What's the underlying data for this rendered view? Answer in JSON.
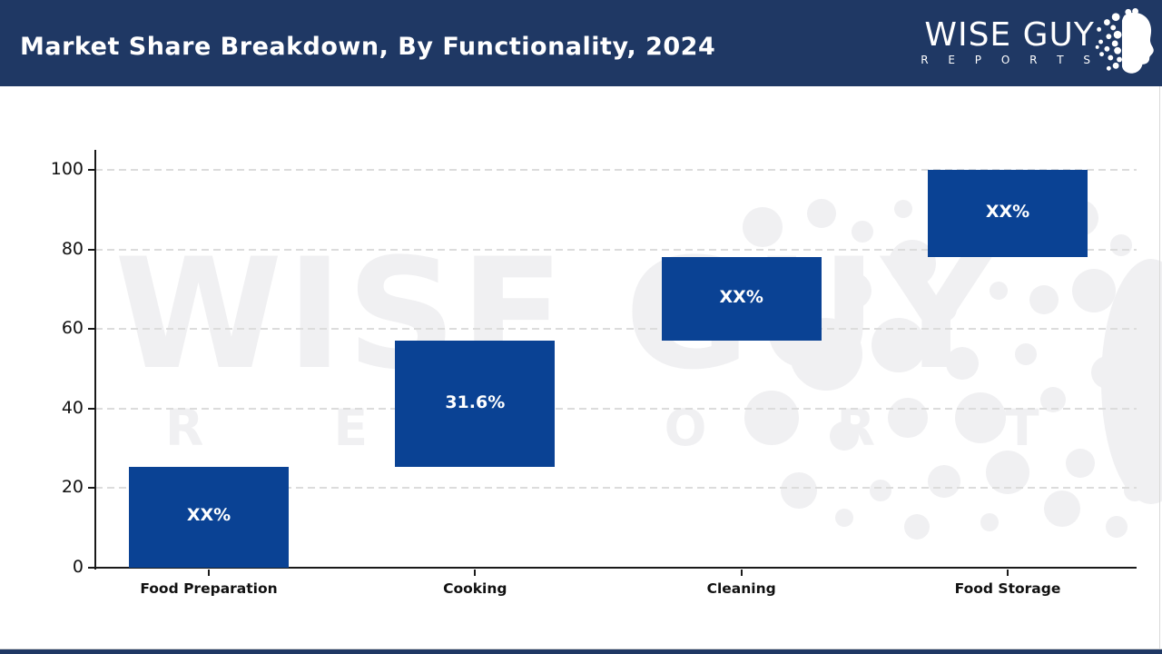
{
  "header": {
    "title": "Market Share Breakdown, By Functionality, 2024",
    "logo_line1": "WISE GUY",
    "logo_line2": "R E P O R T S"
  },
  "watermark": {
    "line1": "WISE GUY",
    "line2": "R E P O R T S"
  },
  "colors": {
    "header_bg": "#1f3864",
    "bar": "#0a4294",
    "grid": "#dcdcdc",
    "watermark": "#f0f0f2"
  },
  "chart_data": {
    "type": "bar",
    "subtype": "floating-waterfall",
    "title": "Market Share Breakdown, By Functionality, 2024",
    "categories": [
      "Food Preparation",
      "Cooking",
      "Cleaning",
      "Food Storage"
    ],
    "series": [
      {
        "name": "Market Share (%)",
        "ranges": [
          [
            0,
            25.4
          ],
          [
            25.4,
            57.0
          ],
          [
            57.0,
            78.0
          ],
          [
            78.0,
            100.0
          ]
        ],
        "labels": [
          "XX%",
          "31.6%",
          "XX%",
          "XX%"
        ]
      }
    ],
    "xlabel": "",
    "ylabel": "",
    "ylim": [
      0,
      100
    ],
    "yticks": [
      0,
      20,
      40,
      60,
      80,
      100
    ],
    "grid": "horizontal-dashed",
    "legend": "none",
    "bar_color": "#0a4294"
  }
}
